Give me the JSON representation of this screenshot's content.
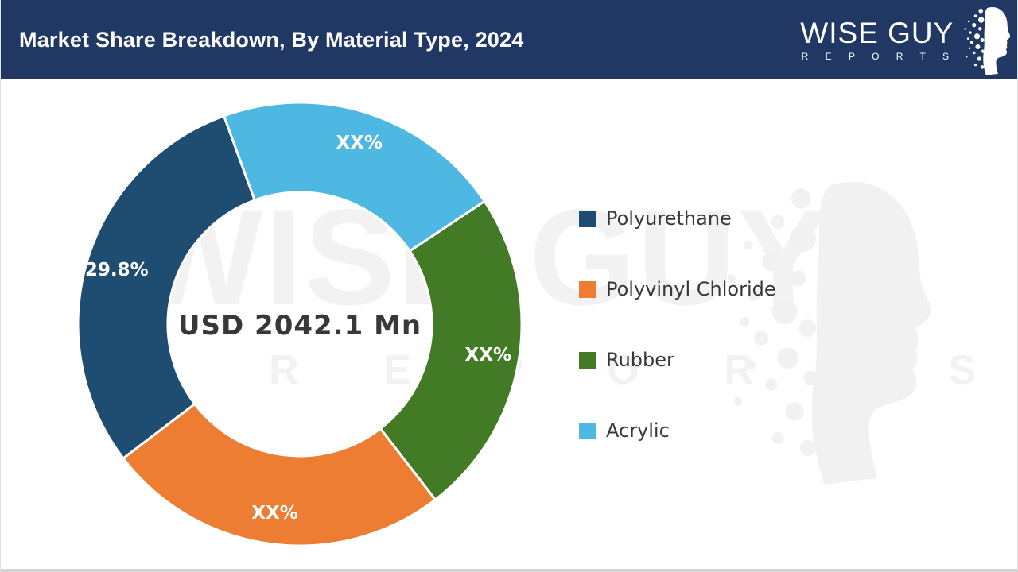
{
  "header": {
    "title": "Market Share Breakdown, By Material Type, 2024",
    "bg_color": "#213764",
    "logo": {
      "line1": "WISE GUY",
      "line2": "R E P O R T S"
    }
  },
  "watermark": {
    "line1": "WISE GUY",
    "line2": "R E P O R T S"
  },
  "chart_data": {
    "type": "pie",
    "subtype": "donut",
    "title": "Market Share Breakdown, By Material Type, 2024",
    "center_label": "USD 2042.1 Mn",
    "legend_position": "right",
    "start_angle_deg": 110,
    "direction": "counterclockwise",
    "inner_radius_ratio": 0.595,
    "label_radius_ratio": 0.86,
    "separator_color": "#ffffff",
    "label_text_color": "#ffffff",
    "segments": [
      {
        "name": "Polyurethane",
        "label": "29.8%",
        "value_pct": 29.8,
        "color": "#1f4d72",
        "note": "value shown in chart"
      },
      {
        "name": "Polyvinyl Chloride",
        "label": "XX%",
        "value_pct": 25.1,
        "color": "#ec7d33",
        "note": "value masked as XX%, arc estimated"
      },
      {
        "name": "Rubber",
        "label": "XX%",
        "value_pct": 23.9,
        "color": "#437a26",
        "note": "value masked as XX%, arc estimated"
      },
      {
        "name": "Acrylic",
        "label": "XX%",
        "value_pct": 21.2,
        "color": "#4fb8e2",
        "note": "value masked as XX%, arc estimated"
      }
    ]
  }
}
